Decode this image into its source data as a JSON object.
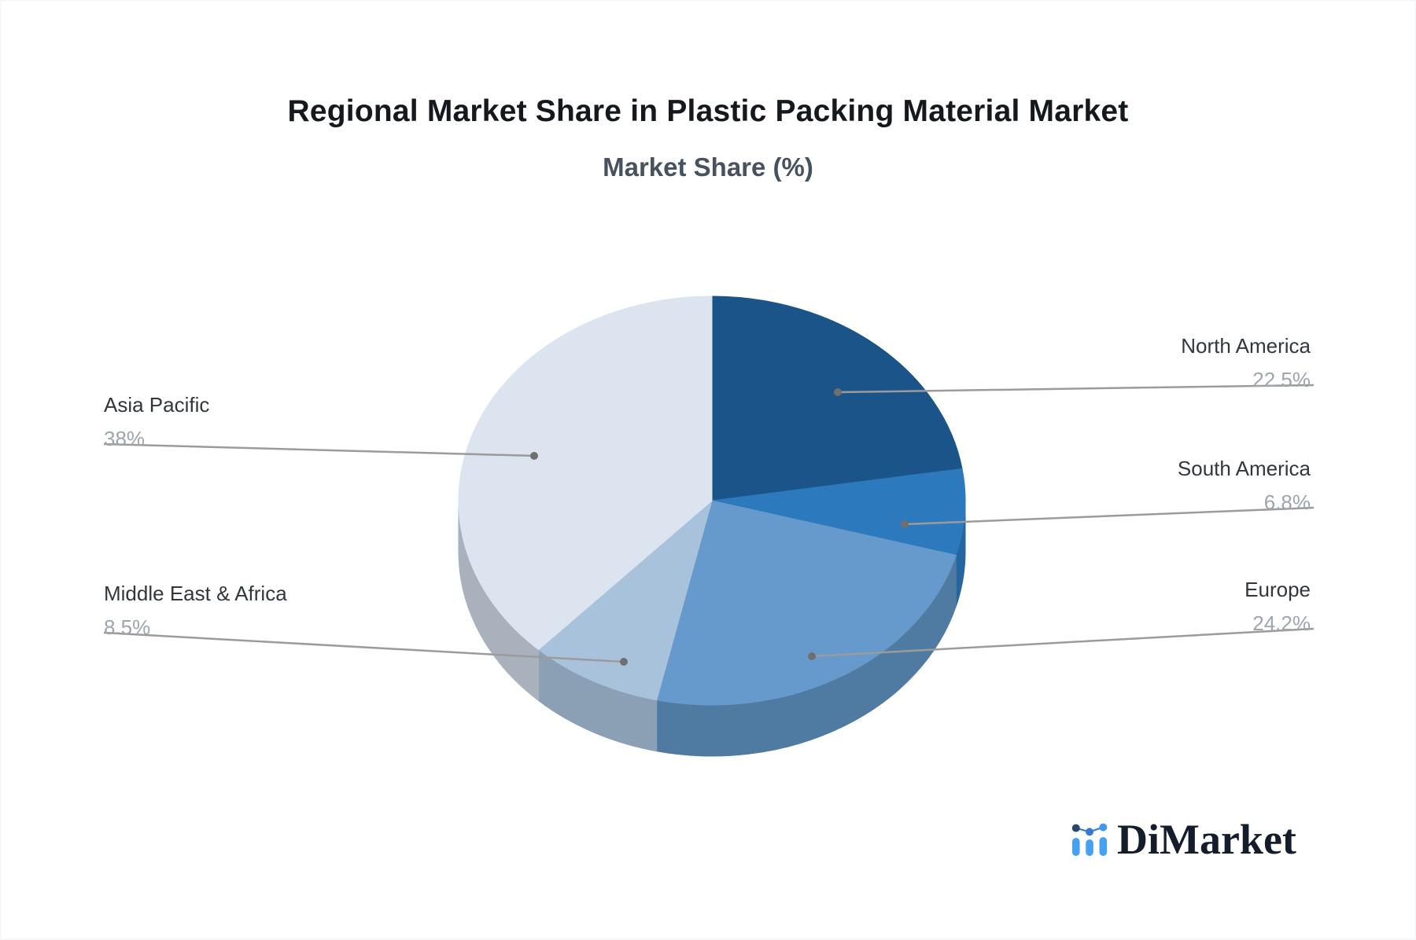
{
  "chart_data": {
    "type": "pie",
    "title": "Regional Market Share in Plastic Packing Material Market",
    "subtitle": "Market Share (%)",
    "unit": "%",
    "direction": "clockwise",
    "start_angle_deg": 0,
    "effect_3d": true,
    "legend_position": "none",
    "slices": [
      {
        "label": "North America",
        "value": 22.5,
        "display": "22.5%",
        "color": "#1A5488",
        "side_color": "#164772"
      },
      {
        "label": "South America",
        "value": 6.8,
        "display": "6.8%",
        "color": "#2C79BE",
        "side_color": "#2565A0"
      },
      {
        "label": "Europe",
        "value": 24.2,
        "display": "24.2%",
        "color": "#6699CC",
        "side_color": "#4F7AA2"
      },
      {
        "label": "Middle East & Africa",
        "value": 8.5,
        "display": "8.5%",
        "color": "#A8C2DC",
        "side_color": "#8BA0B5"
      },
      {
        "label": "Asia Pacific",
        "value": 38,
        "display": "38%",
        "color": "#DCE4EF",
        "side_color": "#A9B2BC"
      }
    ],
    "leader_line_color": "#9b9b9b",
    "leader_dot_color": "#6f6f6f"
  },
  "logo": {
    "text": "DiMarket",
    "icon": "bar-chart-logo-icon",
    "text_color": "#131d2b",
    "bar_color": "#45A1F3",
    "dot_colors": [
      "#27476B",
      "#3579D3",
      "#3E9BF0"
    ],
    "line_color": "#3579D3"
  }
}
